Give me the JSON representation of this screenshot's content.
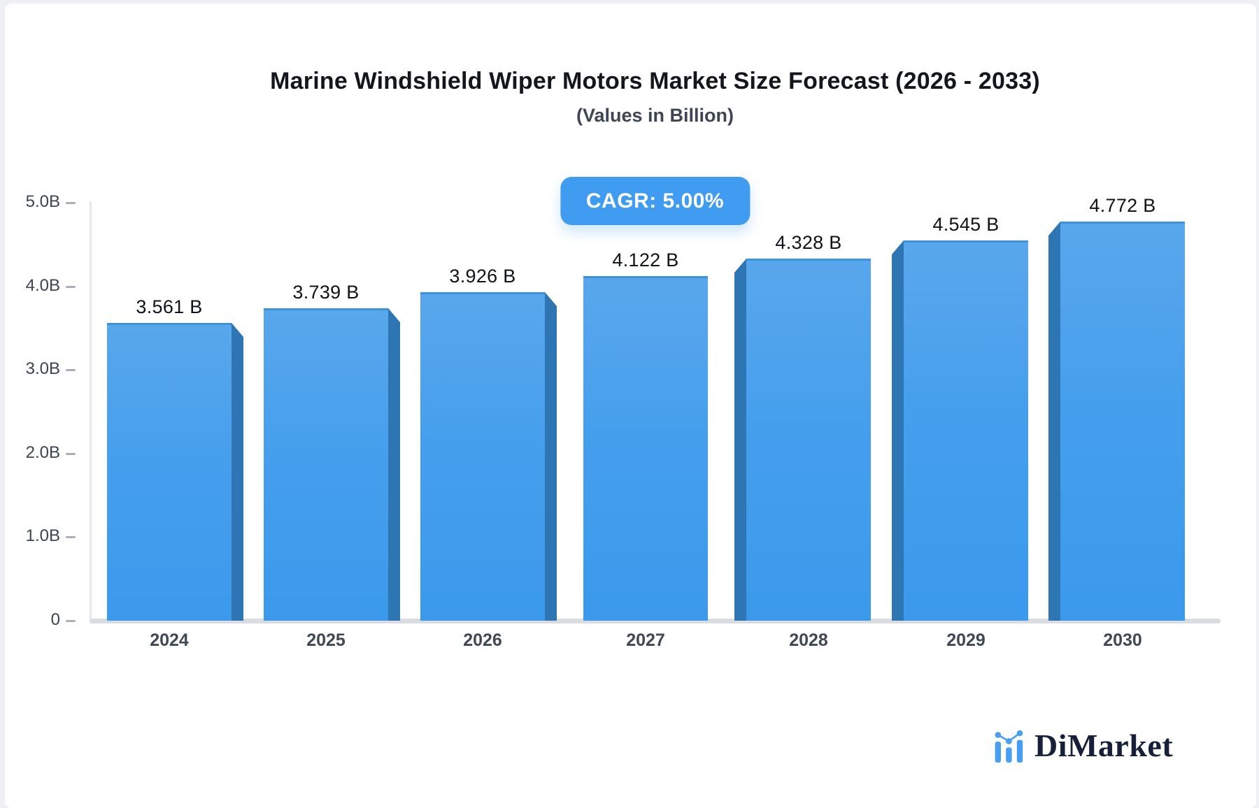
{
  "title": "Marine Windshield Wiper Motors Market Size Forecast (2026 - 2033)",
  "subtitle": "(Values in Billion)",
  "badge": {
    "label": "CAGR: 5.00%",
    "color": "#3f9cf0"
  },
  "chart_data": {
    "type": "bar",
    "categories": [
      "2024",
      "2025",
      "2026",
      "2027",
      "2028",
      "2029",
      "2030"
    ],
    "values": [
      3.561,
      3.739,
      3.926,
      4.122,
      4.328,
      4.545,
      4.772
    ],
    "value_labels": [
      "3.561 B",
      "3.739 B",
      "3.926 B",
      "4.122 B",
      "4.328 B",
      "4.545 B",
      "4.772 B"
    ],
    "title": "Marine Windshield Wiper Motors Market Size Forecast (2026 - 2033)",
    "subtitle": "(Values in Billion)",
    "xlabel": "",
    "ylabel": "",
    "ylim": [
      0,
      5.0
    ],
    "ytick_labels": [
      "0",
      "1.0B",
      "2.0B",
      "3.0B",
      "4.0B",
      "5.0B"
    ],
    "grid": false,
    "legend": null,
    "bar_color_top": "#58a7ec",
    "bar_color_bottom": "#3b99ec",
    "bar_side_color": "#2e76b3",
    "style": "3d-beveled-bars"
  },
  "watermark": {
    "brand": "DiMarket",
    "icon": "bar-chart-logo-icon",
    "accent": "#479ef3"
  }
}
